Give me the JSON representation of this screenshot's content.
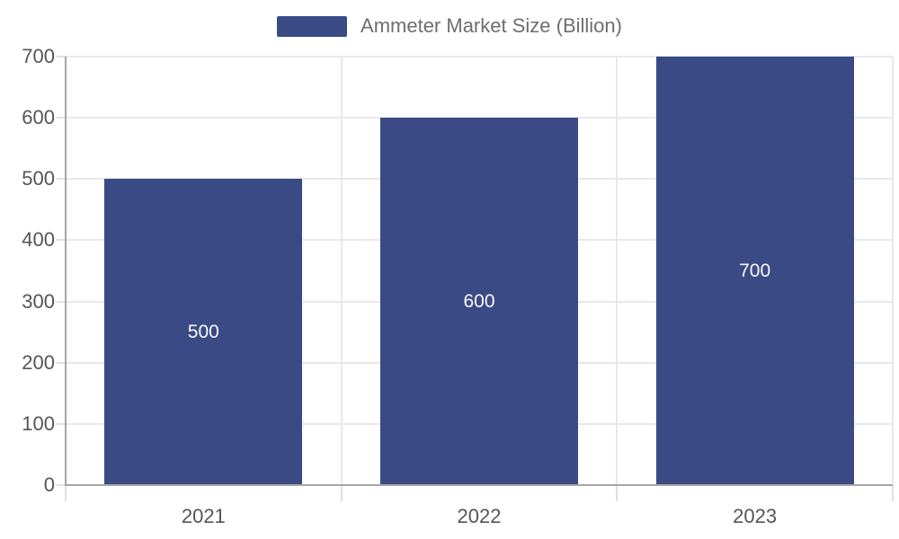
{
  "chart_data": {
    "type": "bar",
    "title": "Ammeter Market Size (Billion)",
    "legend": {
      "label": "Ammeter Market Size (Billion)",
      "position": "top"
    },
    "categories": [
      "2021",
      "2022",
      "2023"
    ],
    "values": [
      500,
      600,
      700
    ],
    "bar_value_labels": [
      "500",
      "600",
      "700"
    ],
    "xlabel": "",
    "ylabel": "",
    "ylim": [
      0,
      700
    ],
    "yticks": [
      0,
      100,
      200,
      300,
      400,
      500,
      600,
      700
    ],
    "grid": true,
    "colors": {
      "bar": "#3A4A84",
      "bar_label": "#FAFAFA",
      "gridline": "#E9E9E9",
      "boundary_tick": "#E0E0E0",
      "axis": "#A6A6A6",
      "tick_label": "#555555",
      "legend_text": "#6E6E6E",
      "background": "#FFFFFF"
    }
  }
}
